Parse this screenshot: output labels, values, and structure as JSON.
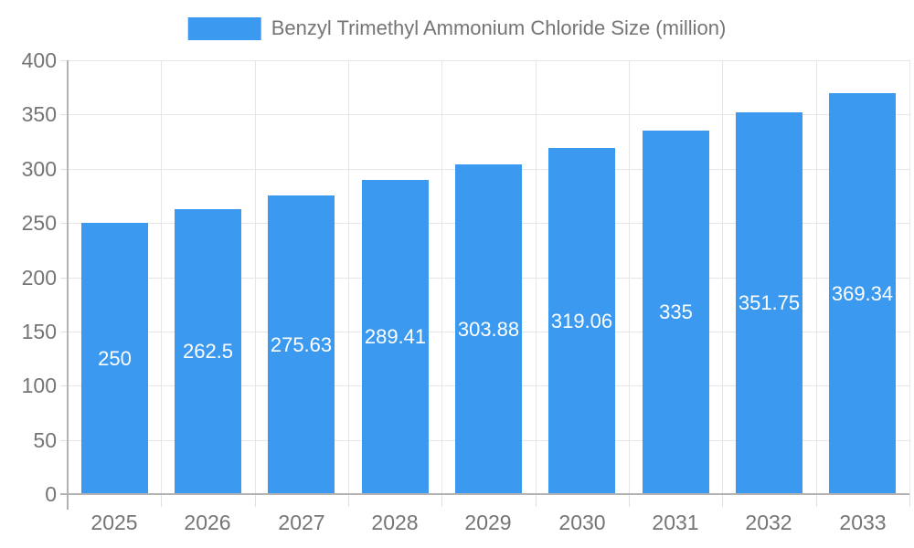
{
  "chart_data": {
    "type": "bar",
    "title": "",
    "legend": "Benzyl Trimethyl Ammonium Chloride Size (million)",
    "legend_position": "top-center",
    "categories": [
      "2025",
      "2026",
      "2027",
      "2028",
      "2029",
      "2030",
      "2031",
      "2032",
      "2033"
    ],
    "series": [
      {
        "name": "Benzyl Trimethyl Ammonium Chloride Size (million)",
        "values": [
          250,
          262.5,
          275.63,
          289.41,
          303.88,
          319.06,
          335,
          351.75,
          369.34
        ]
      }
    ],
    "bar_labels": [
      "250",
      "262.5",
      "275.63",
      "289.41",
      "303.88",
      "319.06",
      "335",
      "351.75",
      "369.34"
    ],
    "xlabel": "",
    "ylabel": "",
    "ylim": [
      0,
      400
    ],
    "yticks": [
      0,
      50,
      100,
      150,
      200,
      250,
      300,
      350,
      400
    ],
    "grid": true,
    "colors": {
      "bar": "#3b9af0",
      "bar_label": "#ffffff",
      "axis_line": "#b3b3b3",
      "gridline": "#e6e6e6",
      "tick": "#e0e0e0",
      "text": "#757575",
      "background": "#ffffff"
    }
  }
}
